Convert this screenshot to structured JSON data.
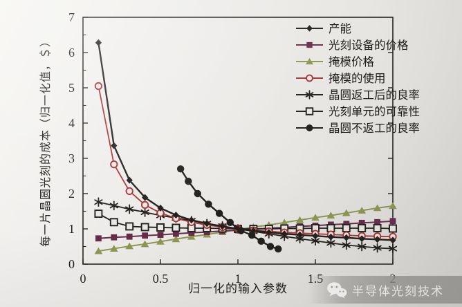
{
  "watermark": {
    "text": "半导体光刻技术",
    "icon": "wechat-icon"
  },
  "colors": {
    "black": "#211f1c",
    "plum": "#662b49",
    "olive": "#8d9752",
    "red": "#a63332",
    "paper": "#eae8e5",
    "axis": "#26241f",
    "watermark_text": "#fbfbfa"
  },
  "chart_data": {
    "type": "line",
    "title": "",
    "xlabel": "归一化的输入参数",
    "ylabel": "每一片晶圆光刻的成本（归一化值，＄）",
    "xlim": [
      0,
      2
    ],
    "ylim": [
      0,
      7
    ],
    "x_ticks": [
      0,
      0.5,
      1,
      1.5,
      2
    ],
    "x_tick_labels": [
      "0",
      "0.5",
      "1",
      "1.5",
      "2"
    ],
    "y_ticks": [
      0,
      1,
      2,
      3,
      4,
      5,
      6,
      7
    ],
    "y_tick_labels": [
      "0",
      "1",
      "2",
      "3",
      "4",
      "5",
      "6",
      "7"
    ],
    "y_minor_tick_step": 0.5,
    "grid": false,
    "legend_position": "upper-right-inside",
    "series": [
      {
        "key": "throughput",
        "name": "产能",
        "color": "#211f1c",
        "marker": "diamond",
        "line_width": 2.4,
        "x": [
          0.1,
          0.2,
          0.3,
          0.4,
          0.5,
          0.6,
          0.7,
          0.8,
          0.9,
          1.0,
          1.1,
          1.2,
          1.3,
          1.4,
          1.5,
          1.6,
          1.7,
          1.8,
          1.9,
          2.0
        ],
        "y": [
          6.28,
          3.36,
          2.38,
          1.89,
          1.59,
          1.39,
          1.25,
          1.15,
          1.07,
          1.0,
          0.95,
          0.9,
          0.86,
          0.83,
          0.8,
          0.77,
          0.75,
          0.72,
          0.7,
          0.68
        ]
      },
      {
        "key": "tool_price",
        "name": "光刻设备的价格",
        "color": "#662b49",
        "marker": "square",
        "line_width": 2.0,
        "x": [
          0.1,
          0.2,
          0.3,
          0.4,
          0.5,
          0.6,
          0.7,
          0.8,
          0.9,
          1.0,
          1.1,
          1.2,
          1.3,
          1.4,
          1.5,
          1.6,
          1.7,
          1.8,
          1.9,
          2.0
        ],
        "y": [
          0.73,
          0.76,
          0.78,
          0.81,
          0.83,
          0.86,
          0.89,
          0.91,
          0.94,
          0.96,
          0.99,
          1.02,
          1.04,
          1.07,
          1.09,
          1.12,
          1.14,
          1.17,
          1.19,
          1.22
        ]
      },
      {
        "key": "mask_price",
        "name": "掩模价格",
        "color": "#8d9752",
        "marker": "triangle",
        "line_width": 2.0,
        "x": [
          0.1,
          0.2,
          0.3,
          0.4,
          0.5,
          0.6,
          0.7,
          0.8,
          0.9,
          1.0,
          1.1,
          1.2,
          1.3,
          1.4,
          1.5,
          1.6,
          1.7,
          1.8,
          1.9,
          2.0
        ],
        "y": [
          0.37,
          0.44,
          0.51,
          0.57,
          0.64,
          0.71,
          0.78,
          0.84,
          0.91,
          0.98,
          1.05,
          1.11,
          1.18,
          1.25,
          1.32,
          1.38,
          1.45,
          1.52,
          1.59,
          1.65
        ]
      },
      {
        "key": "mask_use",
        "name": "掩模的使用",
        "color": "#a63332",
        "marker": "circle-open",
        "line_width": 1.8,
        "x": [
          0.1,
          0.2,
          0.3,
          0.4,
          0.5,
          0.6,
          0.7,
          0.8,
          0.9,
          1.0,
          1.1,
          1.2,
          1.3,
          1.4,
          1.5,
          1.6,
          1.7,
          1.8,
          1.9,
          2.0
        ],
        "y": [
          5.05,
          2.83,
          2.07,
          1.68,
          1.45,
          1.3,
          1.19,
          1.11,
          1.05,
          1.0,
          0.96,
          0.93,
          0.9,
          0.88,
          0.86,
          0.84,
          0.82,
          0.8,
          0.79,
          0.78
        ]
      },
      {
        "key": "rework_yield",
        "name": "晶圆返工后的良率",
        "color": "#211f1c",
        "marker": "asterisk",
        "line_width": 1.8,
        "x": [
          0.1,
          0.2,
          0.3,
          0.4,
          0.5,
          0.6,
          0.7,
          0.8,
          0.9,
          1.0,
          1.1,
          1.2,
          1.3,
          1.4,
          1.5,
          1.6,
          1.7,
          1.8,
          1.9,
          2.0
        ],
        "y": [
          1.76,
          1.66,
          1.56,
          1.47,
          1.38,
          1.31,
          1.23,
          1.15,
          1.08,
          1.0,
          0.93,
          0.86,
          0.79,
          0.72,
          0.66,
          0.6,
          0.54,
          0.5,
          0.46,
          0.44
        ]
      },
      {
        "key": "reliability",
        "name": "光刻单元的可靠性",
        "color": "#211f1c",
        "marker": "square-open",
        "line_width": 1.8,
        "x": [
          0.1,
          0.2,
          0.3,
          0.4,
          0.5,
          0.6,
          0.7,
          0.8,
          0.9,
          1.0,
          1.1,
          1.2,
          1.3,
          1.4,
          1.5,
          1.6,
          1.7,
          1.8,
          1.9,
          2.0
        ],
        "y": [
          1.43,
          1.19,
          1.07,
          1.05,
          1.04,
          1.03,
          1.02,
          1.02,
          1.01,
          1.0,
          1.0,
          1.0,
          1.01,
          1.01,
          1.02,
          1.02,
          1.02,
          1.02,
          1.02,
          1.01
        ]
      },
      {
        "key": "no_rework_yield",
        "name": "晶圆不返工的良率",
        "color": "#211f1c",
        "marker": "circle",
        "line_width": 2.4,
        "x": [
          0.63,
          0.68,
          0.74,
          0.81,
          0.88,
          0.95,
          1.02,
          1.09,
          1.15,
          1.21,
          1.26
        ],
        "y": [
          2.7,
          2.35,
          2.0,
          1.7,
          1.44,
          1.18,
          0.95,
          0.82,
          0.65,
          0.5,
          0.43
        ]
      }
    ]
  }
}
